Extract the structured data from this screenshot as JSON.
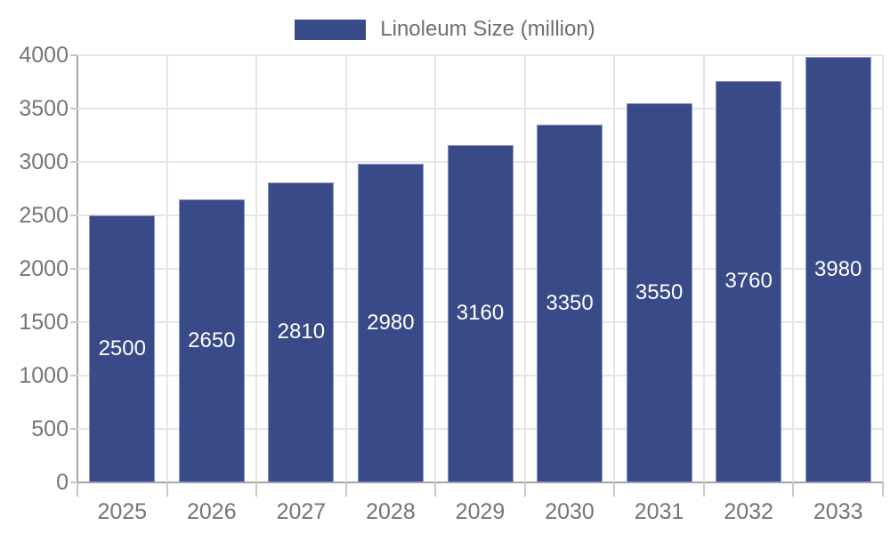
{
  "chart_data": {
    "type": "bar",
    "title": "",
    "legend": "Linoleum Size (million)",
    "legend_position": "top-center",
    "categories": [
      "2025",
      "2026",
      "2027",
      "2028",
      "2029",
      "2030",
      "2031",
      "2032",
      "2033"
    ],
    "values": [
      2500,
      2650,
      2810,
      2980,
      3160,
      3350,
      3550,
      3760,
      3980
    ],
    "xlabel": "",
    "ylabel": "",
    "ylim": [
      0,
      4000
    ],
    "yticks": [
      0,
      500,
      1000,
      1500,
      2000,
      2500,
      3000,
      3500,
      4000
    ],
    "grid": true,
    "colors": {
      "bar_fill": "#384A87",
      "bar_border": "#8e94c4",
      "bar_label_text": "#ffffff",
      "grid_line": "#e6e6e6",
      "axis_line": "#a6a6a6",
      "tick_mark": "#c9c9c9",
      "tick_label_text": "#757575",
      "legend_text": "#6e6e6e",
      "background": "#ffffff"
    }
  }
}
